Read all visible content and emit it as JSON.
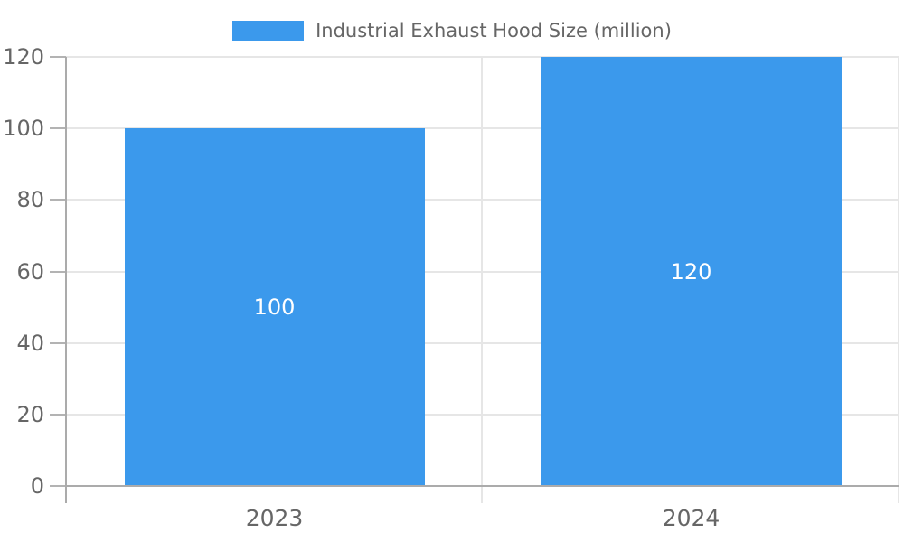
{
  "chart_data": {
    "type": "bar",
    "title": "",
    "legend": {
      "label": "Industrial Exhaust Hood Size (million)",
      "position": "top"
    },
    "categories": [
      "2023",
      "2024"
    ],
    "series": [
      {
        "name": "Industrial Exhaust Hood Size (million)",
        "values": [
          100,
          120
        ]
      }
    ],
    "data_labels": [
      "100",
      "120"
    ],
    "yticks": [
      0,
      20,
      40,
      60,
      80,
      100,
      120
    ],
    "ylim": [
      0,
      120
    ],
    "xlabel": "",
    "ylabel": "",
    "grid": true,
    "bar_width_fraction": 0.72,
    "colors": {
      "bar": "#3b99ec",
      "bar_label_text": "#ffffff",
      "grid_line": "#e6e6e6",
      "axis_line": "#ababab",
      "tick_mark": "#b3b3b3",
      "tick_label_text": "#666666",
      "legend_text": "#666666",
      "background": "#ffffff"
    }
  }
}
